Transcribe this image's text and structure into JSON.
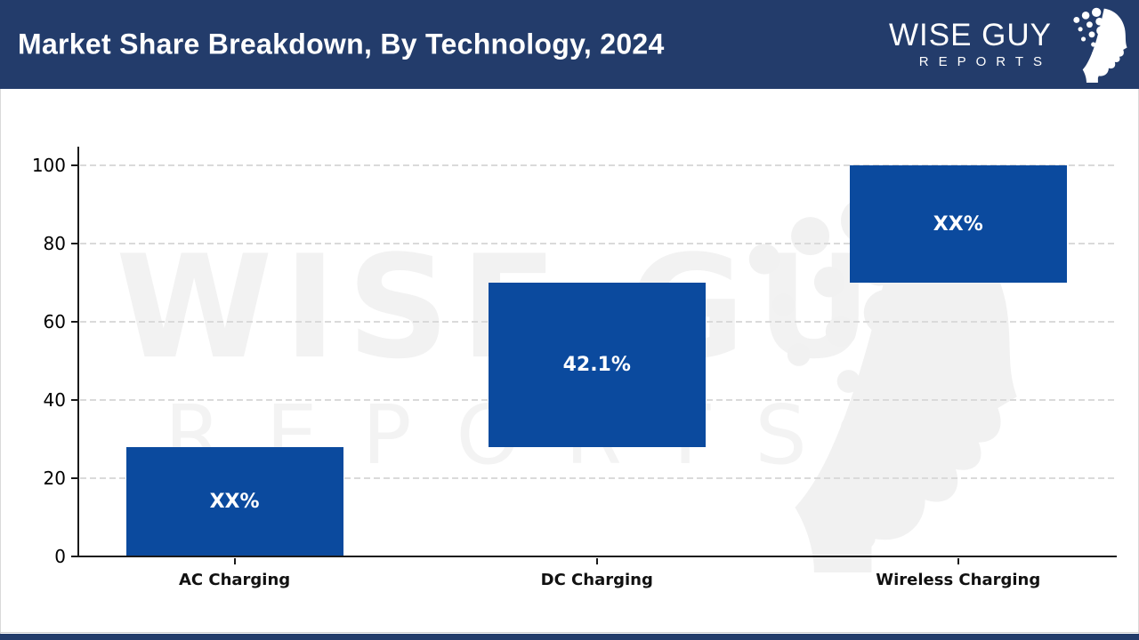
{
  "header": {
    "title": "Market Share Breakdown, By Technology, 2024",
    "logo": {
      "line1": "WISE GUY",
      "line2": "REPORTS"
    }
  },
  "watermark": {
    "line1": "WISE GUY",
    "line2": "REPORTS"
  },
  "colors": {
    "header_bg": "#233C6B",
    "footer_bg": "#233C6B",
    "bar": "#0B4A9E",
    "grid": "#dadada",
    "axis": "#1a1a1a",
    "bar_label": "#ffffff",
    "watermark": "#f2f2f2"
  },
  "chart_data": {
    "type": "bar",
    "subtype": "floating-breakdown-columns",
    "title": "Market Share Breakdown, By Technology, 2024",
    "categories": [
      "AC Charging",
      "DC Charging",
      "Wireless Charging"
    ],
    "bars": [
      {
        "category": "AC Charging",
        "start": 0,
        "end": 27.9,
        "label": "XX%"
      },
      {
        "category": "DC Charging",
        "start": 27.9,
        "end": 70,
        "label": "42.1%"
      },
      {
        "category": "Wireless Charging",
        "start": 70,
        "end": 100,
        "label": "XX%"
      }
    ],
    "ylim": [
      0,
      100
    ],
    "yticks": [
      0,
      20,
      40,
      60,
      80,
      100
    ],
    "xlabel": "",
    "ylabel": "",
    "grid": "horizontal-dashed",
    "legend": "none"
  }
}
